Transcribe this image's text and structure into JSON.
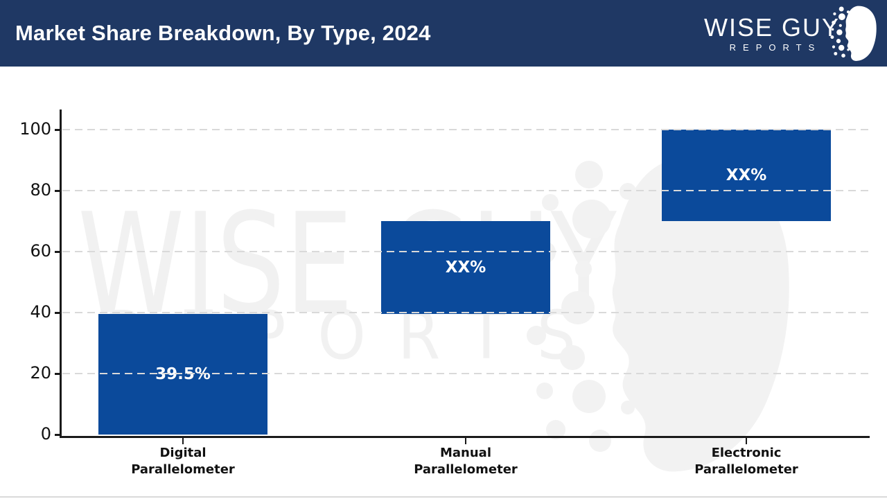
{
  "header": {
    "title": "Market Share Breakdown, By Type, 2024",
    "logo": {
      "line1": "WISE GUY",
      "line2": "REPORTS"
    }
  },
  "watermark": {
    "line1": "WISE GUY",
    "line2": "REPORTS"
  },
  "chart_data": {
    "type": "bar",
    "subtype": "floating-segment-waterfall",
    "title": "Market Share Breakdown, By Type, 2024",
    "categories": [
      {
        "line1": "Digital",
        "line2": "Parallelometer"
      },
      {
        "line1": "Manual",
        "line2": "Parallelometer"
      },
      {
        "line1": "Electronic",
        "line2": "Parallelometer"
      }
    ],
    "series": [
      {
        "name": "Digital Parallelometer",
        "start": 0,
        "end": 39.5,
        "label": "39.5%"
      },
      {
        "name": "Manual Parallelometer",
        "start": 39.5,
        "end": 70,
        "label": "XX%"
      },
      {
        "name": "Electronic Parallelometer",
        "start": 70,
        "end": 100,
        "label": "XX%"
      }
    ],
    "xlabel": "",
    "ylabel": "",
    "yticks": [
      0,
      20,
      40,
      60,
      80,
      100
    ],
    "ylim": [
      0,
      106
    ],
    "grid": "horizontal-dashed",
    "legend": "none"
  },
  "colors": {
    "header_bg": "#1f3864",
    "bar": "#0b4a9b",
    "bar_label": "#ffffff",
    "grid": "#d9d9d9",
    "axis": "#1a1a1a",
    "watermark": "#f1f1f1"
  }
}
